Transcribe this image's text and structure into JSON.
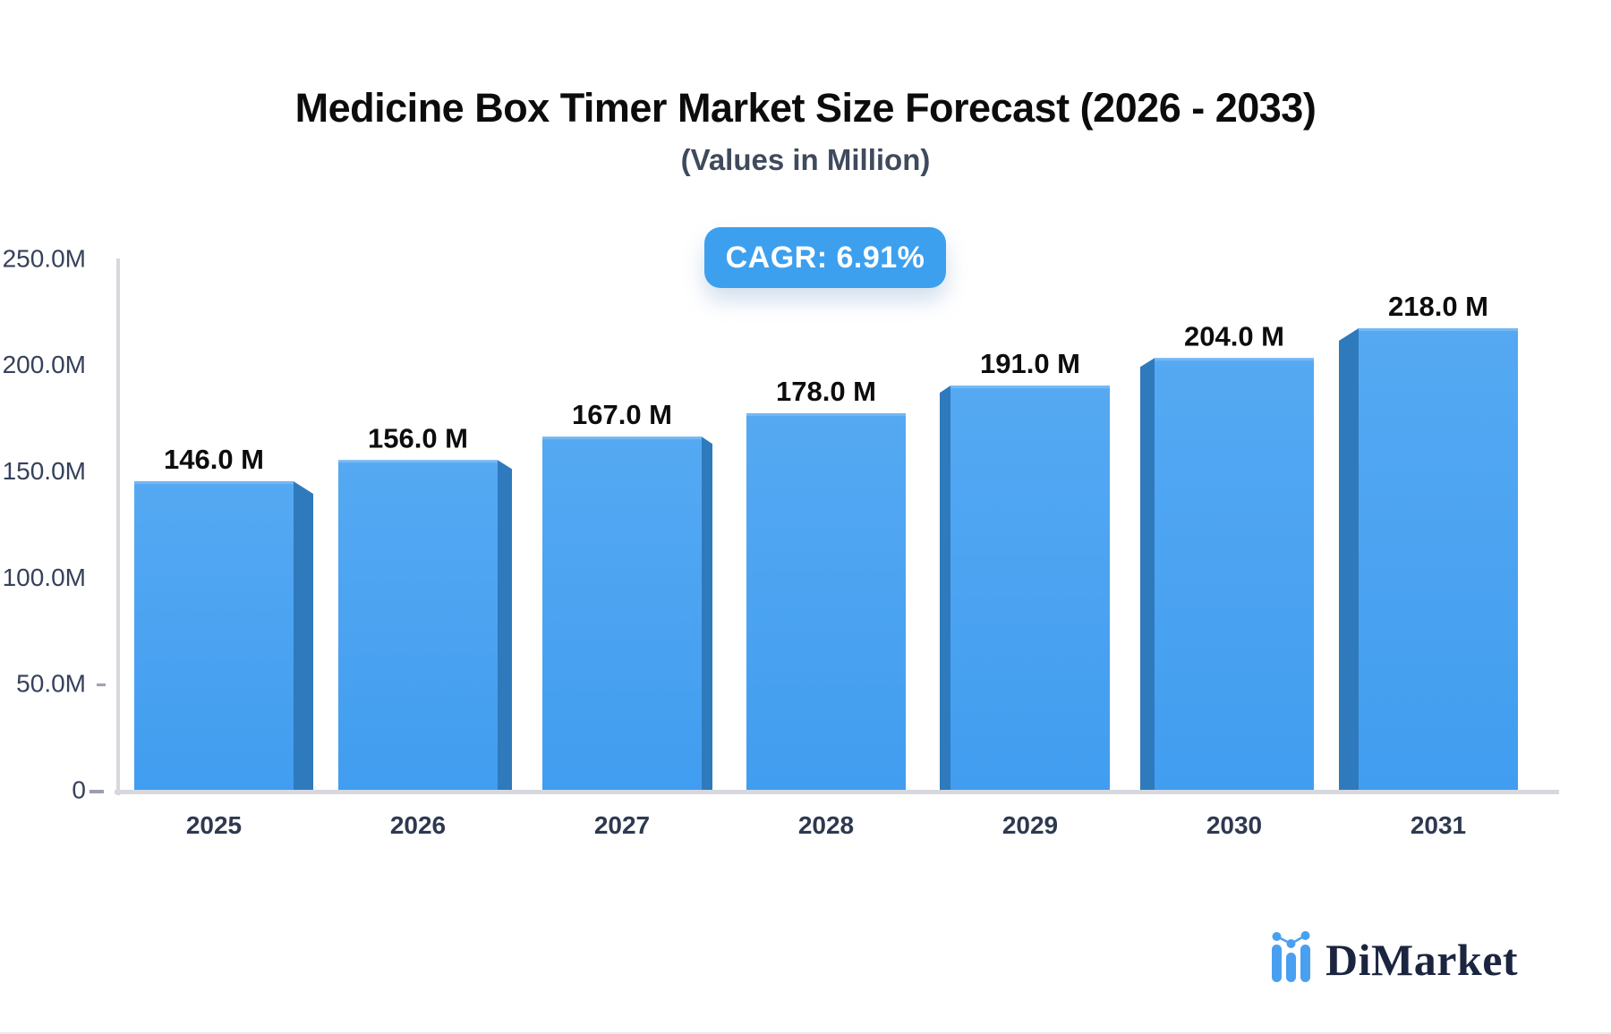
{
  "header": {
    "title": "Medicine Box Timer Market Size Forecast (2026 - 2033)",
    "subtitle": "(Values in Million)",
    "cagr_badge": "CAGR: 6.91%"
  },
  "chart_data": {
    "type": "bar",
    "title": "Medicine Box Timer Market Size Forecast (2026 - 2033)",
    "subtitle": "(Values in Million)",
    "cagr": "CAGR: 6.91%",
    "categories": [
      "2025",
      "2026",
      "2027",
      "2028",
      "2029",
      "2030",
      "2031"
    ],
    "values": [
      146,
      156,
      167,
      178,
      191,
      204,
      218
    ],
    "value_labels": [
      "146.0 M",
      "156.0 M",
      "167.0 M",
      "178.0 M",
      "191.0 M",
      "204.0 M",
      "218.0 M"
    ],
    "unit": "Million",
    "xlabel": "",
    "ylabel": "",
    "y_axis": {
      "ticks": [
        "0",
        "50.0M",
        "100.0M",
        "150.0M",
        "200.0M",
        "250.0M"
      ],
      "range": [
        0,
        250
      ]
    },
    "grid": false,
    "legend": false,
    "style_3d": "center-perspective bars, dark side panels facing outward"
  },
  "colors": {
    "bar_face_top": "#55a9f2",
    "bar_face_bottom": "#419df0",
    "bar_top_edge": "#74b8f4",
    "bar_side": "#2e7abc",
    "badge_bg": "#3da0ef",
    "axis_line": "#d6d8de",
    "tick_mark": "#9aa0aa",
    "y_label_text": "#36415a",
    "x_label_text": "#2e3950",
    "value_label_text": "#0d0d0d",
    "logo_icon": "#4aa0f0",
    "logo_text": "#1b2540"
  },
  "footer": {
    "brand": "DiMarket",
    "icon": "mini-bar-chart-logo"
  }
}
